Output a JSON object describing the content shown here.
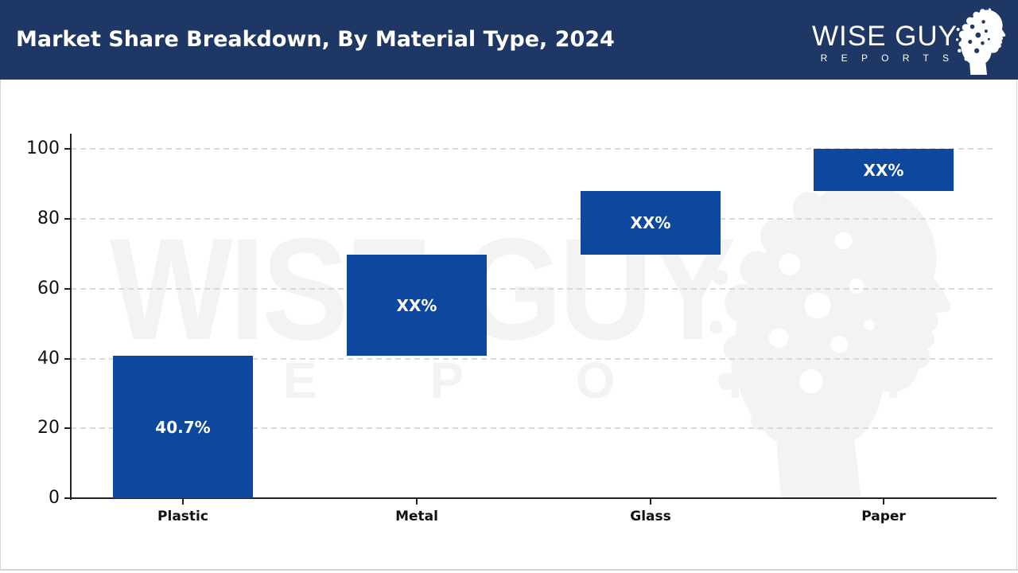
{
  "header": {
    "title": "Market Share Breakdown, By Material Type, 2024",
    "logo": {
      "wordmark": "WISE GUY",
      "subtext": "R E P O R T S"
    }
  },
  "watermark": {
    "wordmark": "WISE GUY",
    "subtext": "R E P O R T S"
  },
  "chart_data": {
    "type": "bar",
    "variant": "waterfall",
    "title": "Market Share Breakdown, By Material Type, 2024",
    "xlabel": "",
    "ylabel": "",
    "categories": [
      "Plastic",
      "Metal",
      "Glass",
      "Paper"
    ],
    "segments": [
      {
        "category": "Plastic",
        "start": 0,
        "end": 40.7,
        "label": "40.7%"
      },
      {
        "category": "Metal",
        "start": 40.7,
        "end": 69.8,
        "label": "XX%"
      },
      {
        "category": "Glass",
        "start": 69.8,
        "end": 88.0,
        "label": "XX%"
      },
      {
        "category": "Paper",
        "start": 88.0,
        "end": 100.0,
        "label": "XX%"
      }
    ],
    "yticks": [
      0,
      20,
      40,
      60,
      80,
      100
    ],
    "ylim": [
      0,
      104.5
    ],
    "grid": {
      "axis": "y",
      "style": "dashed"
    },
    "legend": "none"
  },
  "colors": {
    "header_bg": "#1f3765",
    "bar": "#0e479e",
    "axis": "#222222",
    "gridline": "#d9d9d9",
    "watermark": "#f3f3f3",
    "card_border": "#d6d6d6"
  }
}
